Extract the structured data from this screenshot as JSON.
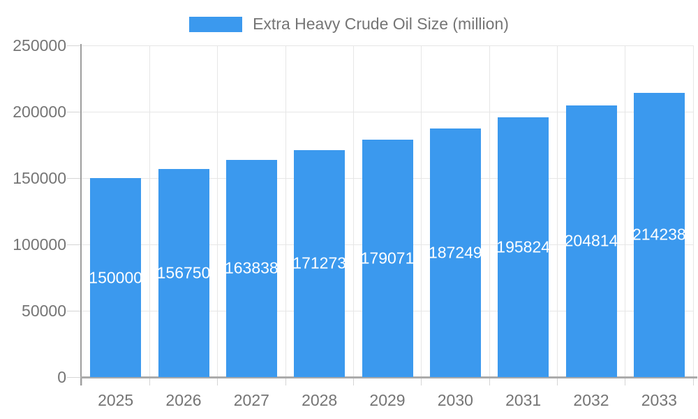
{
  "legend": {
    "label": "Extra Heavy Crude Oil Size (million)"
  },
  "chart_data": {
    "type": "bar",
    "title": "Extra Heavy Crude Oil Size (million)",
    "categories": [
      "2025",
      "2026",
      "2027",
      "2028",
      "2029",
      "2030",
      "2031",
      "2032",
      "2033"
    ],
    "values": [
      150000,
      156750,
      163838,
      171273,
      179071,
      187249,
      195824,
      204814,
      214238
    ],
    "bar_value_labels": [
      "150000",
      "156750",
      "163838",
      "171273",
      "179071",
      "187249",
      "195824",
      "204814",
      "214238"
    ],
    "xlabel": "",
    "ylabel": "",
    "ylim": [
      0,
      250000
    ],
    "yticks": [
      0,
      50000,
      100000,
      150000,
      200000,
      250000
    ],
    "ytick_labels": [
      "0",
      "50000",
      "100000",
      "150000",
      "200000",
      "250000"
    ],
    "grid": "on",
    "legend_position": "top-center",
    "colors": {
      "bar": "#3b99ee",
      "bar_value_text": "#ffffff",
      "axis_text": "#757575",
      "gridline": "#e6e6e6",
      "y_axis_line": "#9e9e9e",
      "x_axis_line": "#ababab",
      "background": "#ffffff"
    }
  }
}
